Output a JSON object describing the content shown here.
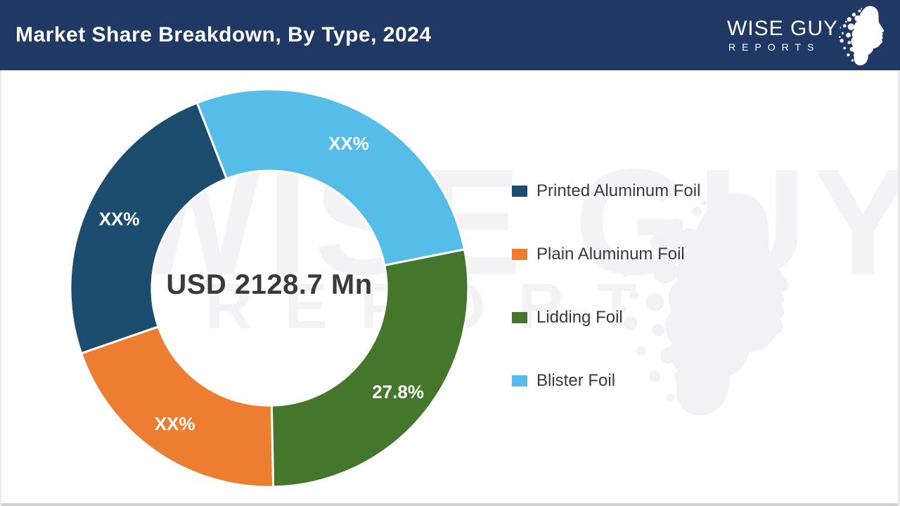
{
  "header": {
    "title": "Market Share Breakdown, By Type, 2024",
    "logo": {
      "line1": "WISE GUY",
      "line2": "REPORTS"
    }
  },
  "watermark": {
    "line1": "WISE GUY",
    "line2": "REPORTS"
  },
  "chart_data": {
    "type": "pie",
    "subtype": "donut",
    "title": "Market Share Breakdown, By Type, 2024",
    "center_label": "USD 2128.7 Mn",
    "start_angle_deg": -21.3,
    "legend_position": "right",
    "segments": [
      {
        "label": "Blister Foil",
        "display_label": "XX%",
        "value_pct_est": 27.8,
        "color": "#55bde8"
      },
      {
        "label": "Lidding Foil",
        "display_label": "27.8%",
        "value_pct_est": 27.8,
        "color": "#44762c"
      },
      {
        "label": "Plain Aluminum Foil",
        "display_label": "XX%",
        "value_pct_est": 20.0,
        "color": "#ed7d31"
      },
      {
        "label": "Printed Aluminum Foil",
        "display_label": "XX%",
        "value_pct_est": 24.4,
        "color": "#1d4d6e"
      }
    ]
  },
  "legend": {
    "items": [
      {
        "label": "Printed Aluminum Foil",
        "color": "#1d4d6e"
      },
      {
        "label": "Plain Aluminum Foil",
        "color": "#ed7d31"
      },
      {
        "label": "Lidding Foil",
        "color": "#44762c"
      },
      {
        "label": "Blister Foil",
        "color": "#55bde8"
      }
    ]
  },
  "colors": {
    "header_bg": "#1f3864",
    "value_text": "#3a3a3a",
    "watermark": "#f3f3f5",
    "segment_divider": "#ffffff"
  }
}
